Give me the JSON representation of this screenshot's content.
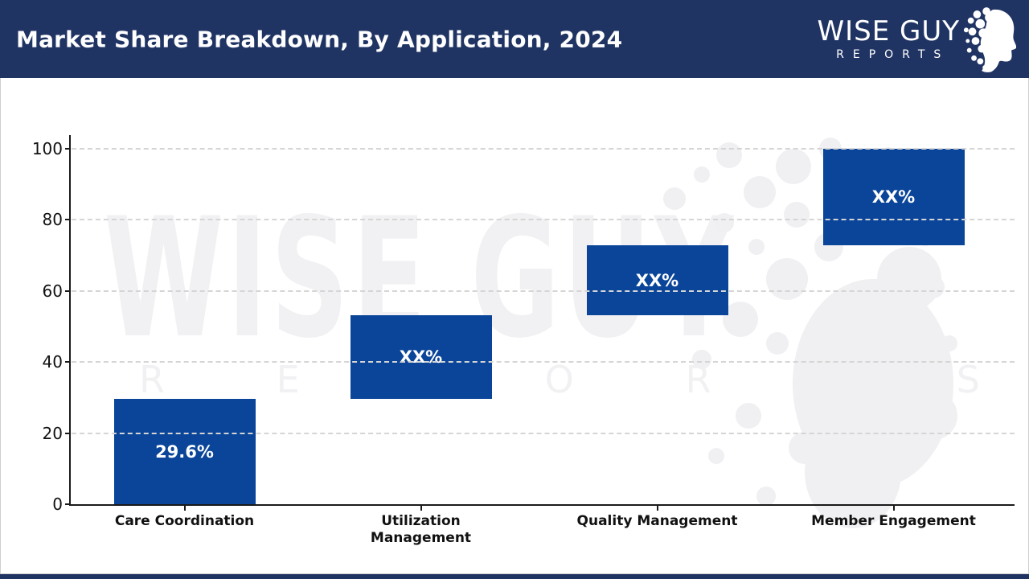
{
  "header": {
    "title": "Market Share Breakdown, By Application, 2024",
    "bg_color": "#203464",
    "logo_line1": "WISE GUY",
    "logo_line2": "REPORTS"
  },
  "watermark": {
    "line1": "WISE GUY",
    "line2": "R E P O R T S"
  },
  "chart_data": {
    "type": "bar",
    "variant": "waterfall",
    "title": "Market Share Breakdown, By Application, 2024",
    "categories": [
      "Care Coordination",
      "Utilization Management",
      "Quality Management",
      "Member Engagement"
    ],
    "category_display": [
      "Care Coordination",
      "Utilization\nManagement",
      "Quality Management",
      "Member Engagement"
    ],
    "series": [
      {
        "name": "Market Share (%)",
        "segments": [
          {
            "category": "Care Coordination",
            "start": 0,
            "end": 29.6,
            "label": "29.6%"
          },
          {
            "category": "Utilization Management",
            "start": 29.6,
            "end": 53.1,
            "label": "XX%"
          },
          {
            "category": "Quality Management",
            "start": 53.1,
            "end": 72.8,
            "label": "XX%"
          },
          {
            "category": "Member Engagement",
            "start": 72.8,
            "end": 100,
            "label": "XX%"
          }
        ]
      }
    ],
    "xlabel": "",
    "ylabel": "",
    "ylim": [
      0,
      100
    ],
    "yticks": [
      0,
      20,
      40,
      60,
      80,
      100
    ],
    "grid": "horizontal-dashed-over-bars",
    "legend": "none",
    "bar_color": "#0a4599",
    "bar_label_color": "#ffffff"
  }
}
